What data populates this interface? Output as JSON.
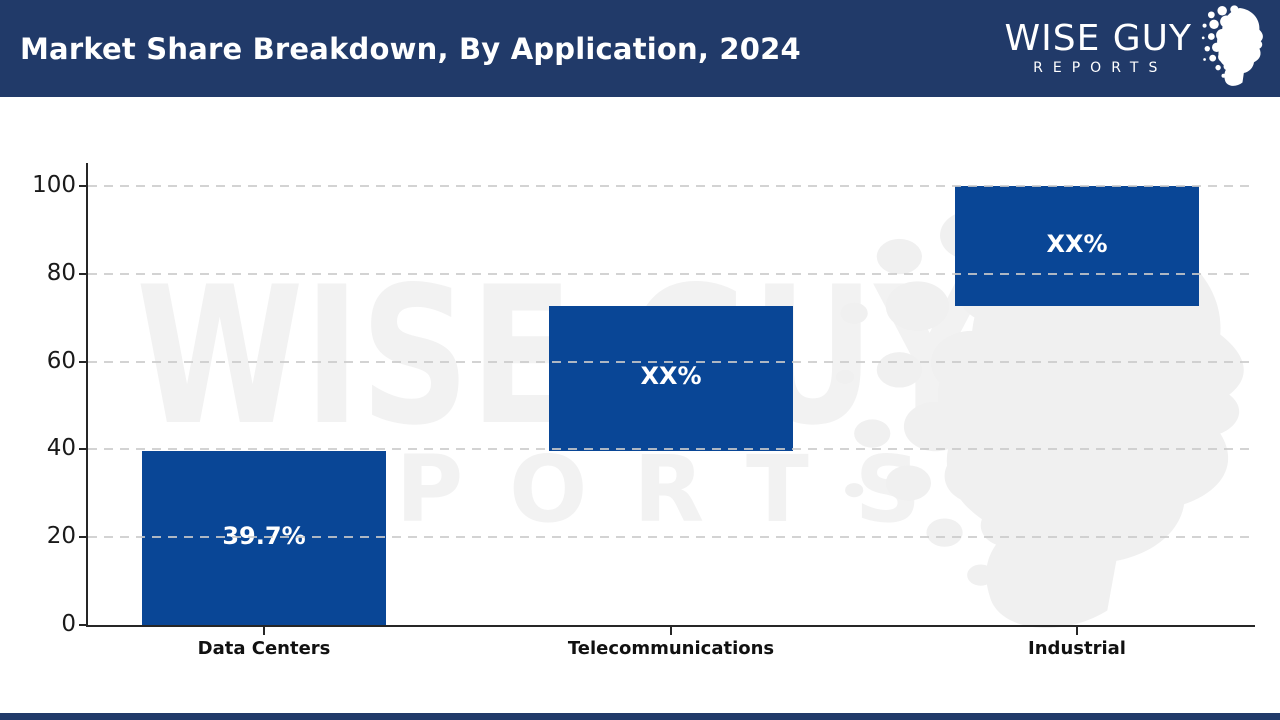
{
  "header": {
    "title": "Market Share Breakdown, By Application, 2024",
    "bg_color": "#213a69",
    "logo": {
      "brand": "WISE GUY",
      "brand_sub": "REPORTS"
    }
  },
  "watermark": {
    "line1": "WISE GUY",
    "line2": "REPORTS"
  },
  "chart_data": {
    "type": "bar",
    "variant": "waterfall-stacked-percentage",
    "title": "Market Share Breakdown, By Application, 2024",
    "categories": [
      "Data Centers",
      "Telecommunications",
      "Industrial"
    ],
    "segments": [
      {
        "category": "Data Centers",
        "start": 0,
        "end": 39.7,
        "label": "39.7%"
      },
      {
        "category": "Telecommunications",
        "start": 39.7,
        "end": 72.7,
        "label": "XX%"
      },
      {
        "category": "Industrial",
        "start": 72.7,
        "end": 100,
        "label": "XX%"
      }
    ],
    "yticks": [
      0,
      20,
      40,
      60,
      80,
      100
    ],
    "ylim": [
      0,
      105
    ],
    "xlabel": "",
    "ylabel": "",
    "bar_color": "#094696",
    "bar_label_color": "#ffffff",
    "axis_color": "#262626",
    "grid": {
      "show": true,
      "axis": "y",
      "style": "dashed",
      "color": "#cbcbcb"
    },
    "legend": "none"
  },
  "footer": {
    "bar_color": "#213a69"
  }
}
